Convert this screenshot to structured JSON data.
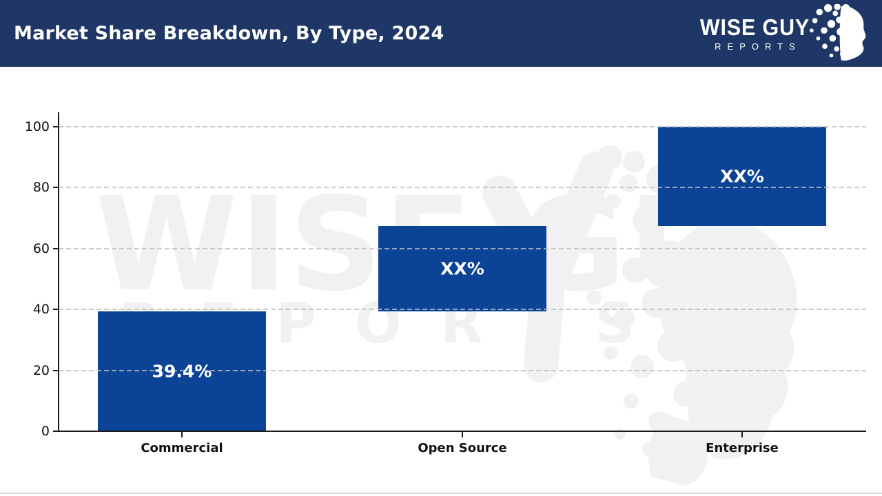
{
  "header": {
    "title": "Market Share Breakdown, By Type, 2024",
    "bg_color": "#1E3766",
    "logo": {
      "name_line": "WISE GUY",
      "sub_line": "REPORTS"
    }
  },
  "watermark": {
    "line1": "WISE GU",
    "line2": "REPORTS"
  },
  "chart_data": {
    "type": "bar",
    "subtype": "waterfall",
    "title": "Market Share Breakdown, By Type, 2024",
    "categories": [
      "Commercial",
      "Open Source",
      "Enterprise"
    ],
    "segments": [
      {
        "category": "Commercial",
        "start": 0,
        "end": 39.4,
        "value": 39.4,
        "label": "39.4%"
      },
      {
        "category": "Open Source",
        "start": 39.4,
        "end": 67.5,
        "value": 28.1,
        "label": "XX%"
      },
      {
        "category": "Enterprise",
        "start": 67.5,
        "end": 100,
        "value": 32.5,
        "label": "XX%"
      }
    ],
    "ylim": [
      0,
      100
    ],
    "yticks": [
      0,
      20,
      40,
      60,
      80,
      100
    ],
    "xlabel": "",
    "ylabel": "",
    "grid": {
      "horizontal": true,
      "style": "dashed",
      "drawn_over_bars": true
    },
    "legend": "none",
    "colors": {
      "bar": "#0B4396",
      "bar_label": "#ffffff",
      "grid": "#d4d4d4",
      "axis": "#1a1a1a",
      "tick_label": "#111111",
      "watermark": "#f1f1f1"
    }
  }
}
